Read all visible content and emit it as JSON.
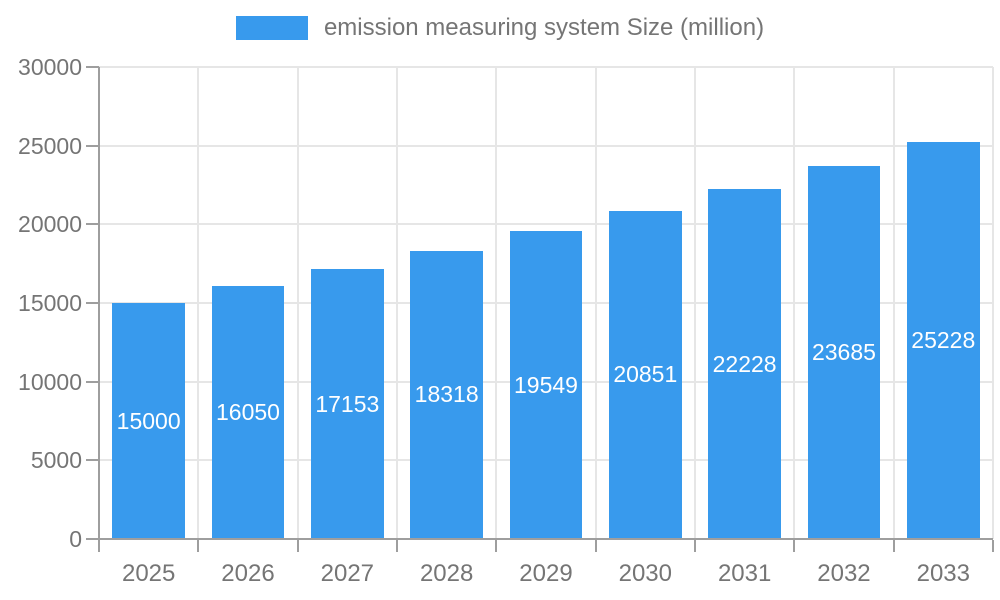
{
  "legend": {
    "label": "emission measuring system Size (million)"
  },
  "chart_data": {
    "type": "bar",
    "title": "",
    "legend_label": "emission measuring system Size (million)",
    "legend_position": "top",
    "categories": [
      "2025",
      "2026",
      "2027",
      "2028",
      "2029",
      "2030",
      "2031",
      "2032",
      "2033"
    ],
    "values": [
      15000,
      16050,
      17153,
      18318,
      19549,
      20851,
      22228,
      23685,
      25228
    ],
    "value_labels": [
      "15000",
      "16050",
      "17153",
      "18318",
      "19549",
      "20851",
      "22228",
      "23685",
      "25228"
    ],
    "xlabel": "",
    "ylabel": "",
    "ylim": [
      0,
      30000
    ],
    "yticks": [
      0,
      5000,
      10000,
      15000,
      20000,
      25000,
      30000
    ],
    "grid": true,
    "colors": {
      "bar": "#389aed",
      "gridline": "#e6e6e6",
      "axis_line": "#9e9e9e",
      "axis_text": "#757575",
      "bar_label_text": "#ffffff"
    }
  }
}
